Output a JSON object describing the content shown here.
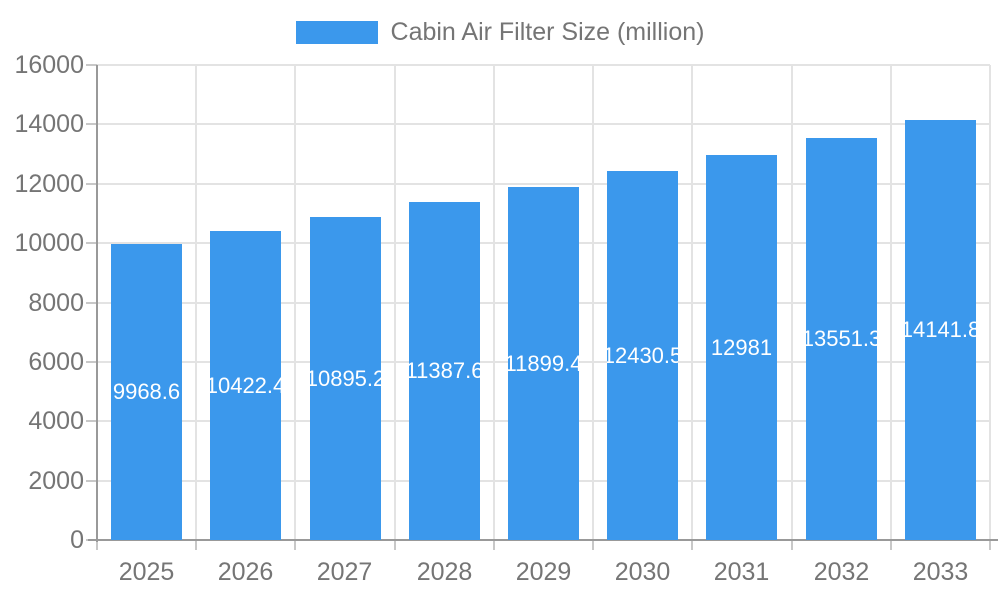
{
  "legend": {
    "label": "Cabin Air Filter Size (million)"
  },
  "colors": {
    "bar": "#3B98EC",
    "grid": "#E3E3E3",
    "axis": "#999999",
    "tick": "#C8C8C8",
    "tick_label": "#757575",
    "bar_label": "#FFFFFF",
    "background": "#FFFFFF"
  },
  "chart_data": {
    "type": "bar",
    "title": "Cabin Air Filter Size (million)",
    "categories": [
      "2025",
      "2026",
      "2027",
      "2028",
      "2029",
      "2030",
      "2031",
      "2032",
      "2033"
    ],
    "values": [
      9968.6,
      10422.4,
      10895.2,
      11387.6,
      11899.4,
      12430.5,
      12981,
      13551.3,
      14141.8
    ],
    "value_labels": [
      "9968.6",
      "10422.4",
      "10895.2",
      "11387.6",
      "11899.4",
      "12430.5",
      "12981",
      "13551.3",
      "14141.8"
    ],
    "series_name": "Cabin Air Filter Size (million)",
    "xlabel": "",
    "ylabel": "",
    "ylim": [
      0,
      16000
    ],
    "yticks": [
      0,
      2000,
      4000,
      6000,
      8000,
      10000,
      12000,
      14000,
      16000
    ],
    "legend_position": "top",
    "grid": true,
    "value_label_position": "inside-middle"
  }
}
